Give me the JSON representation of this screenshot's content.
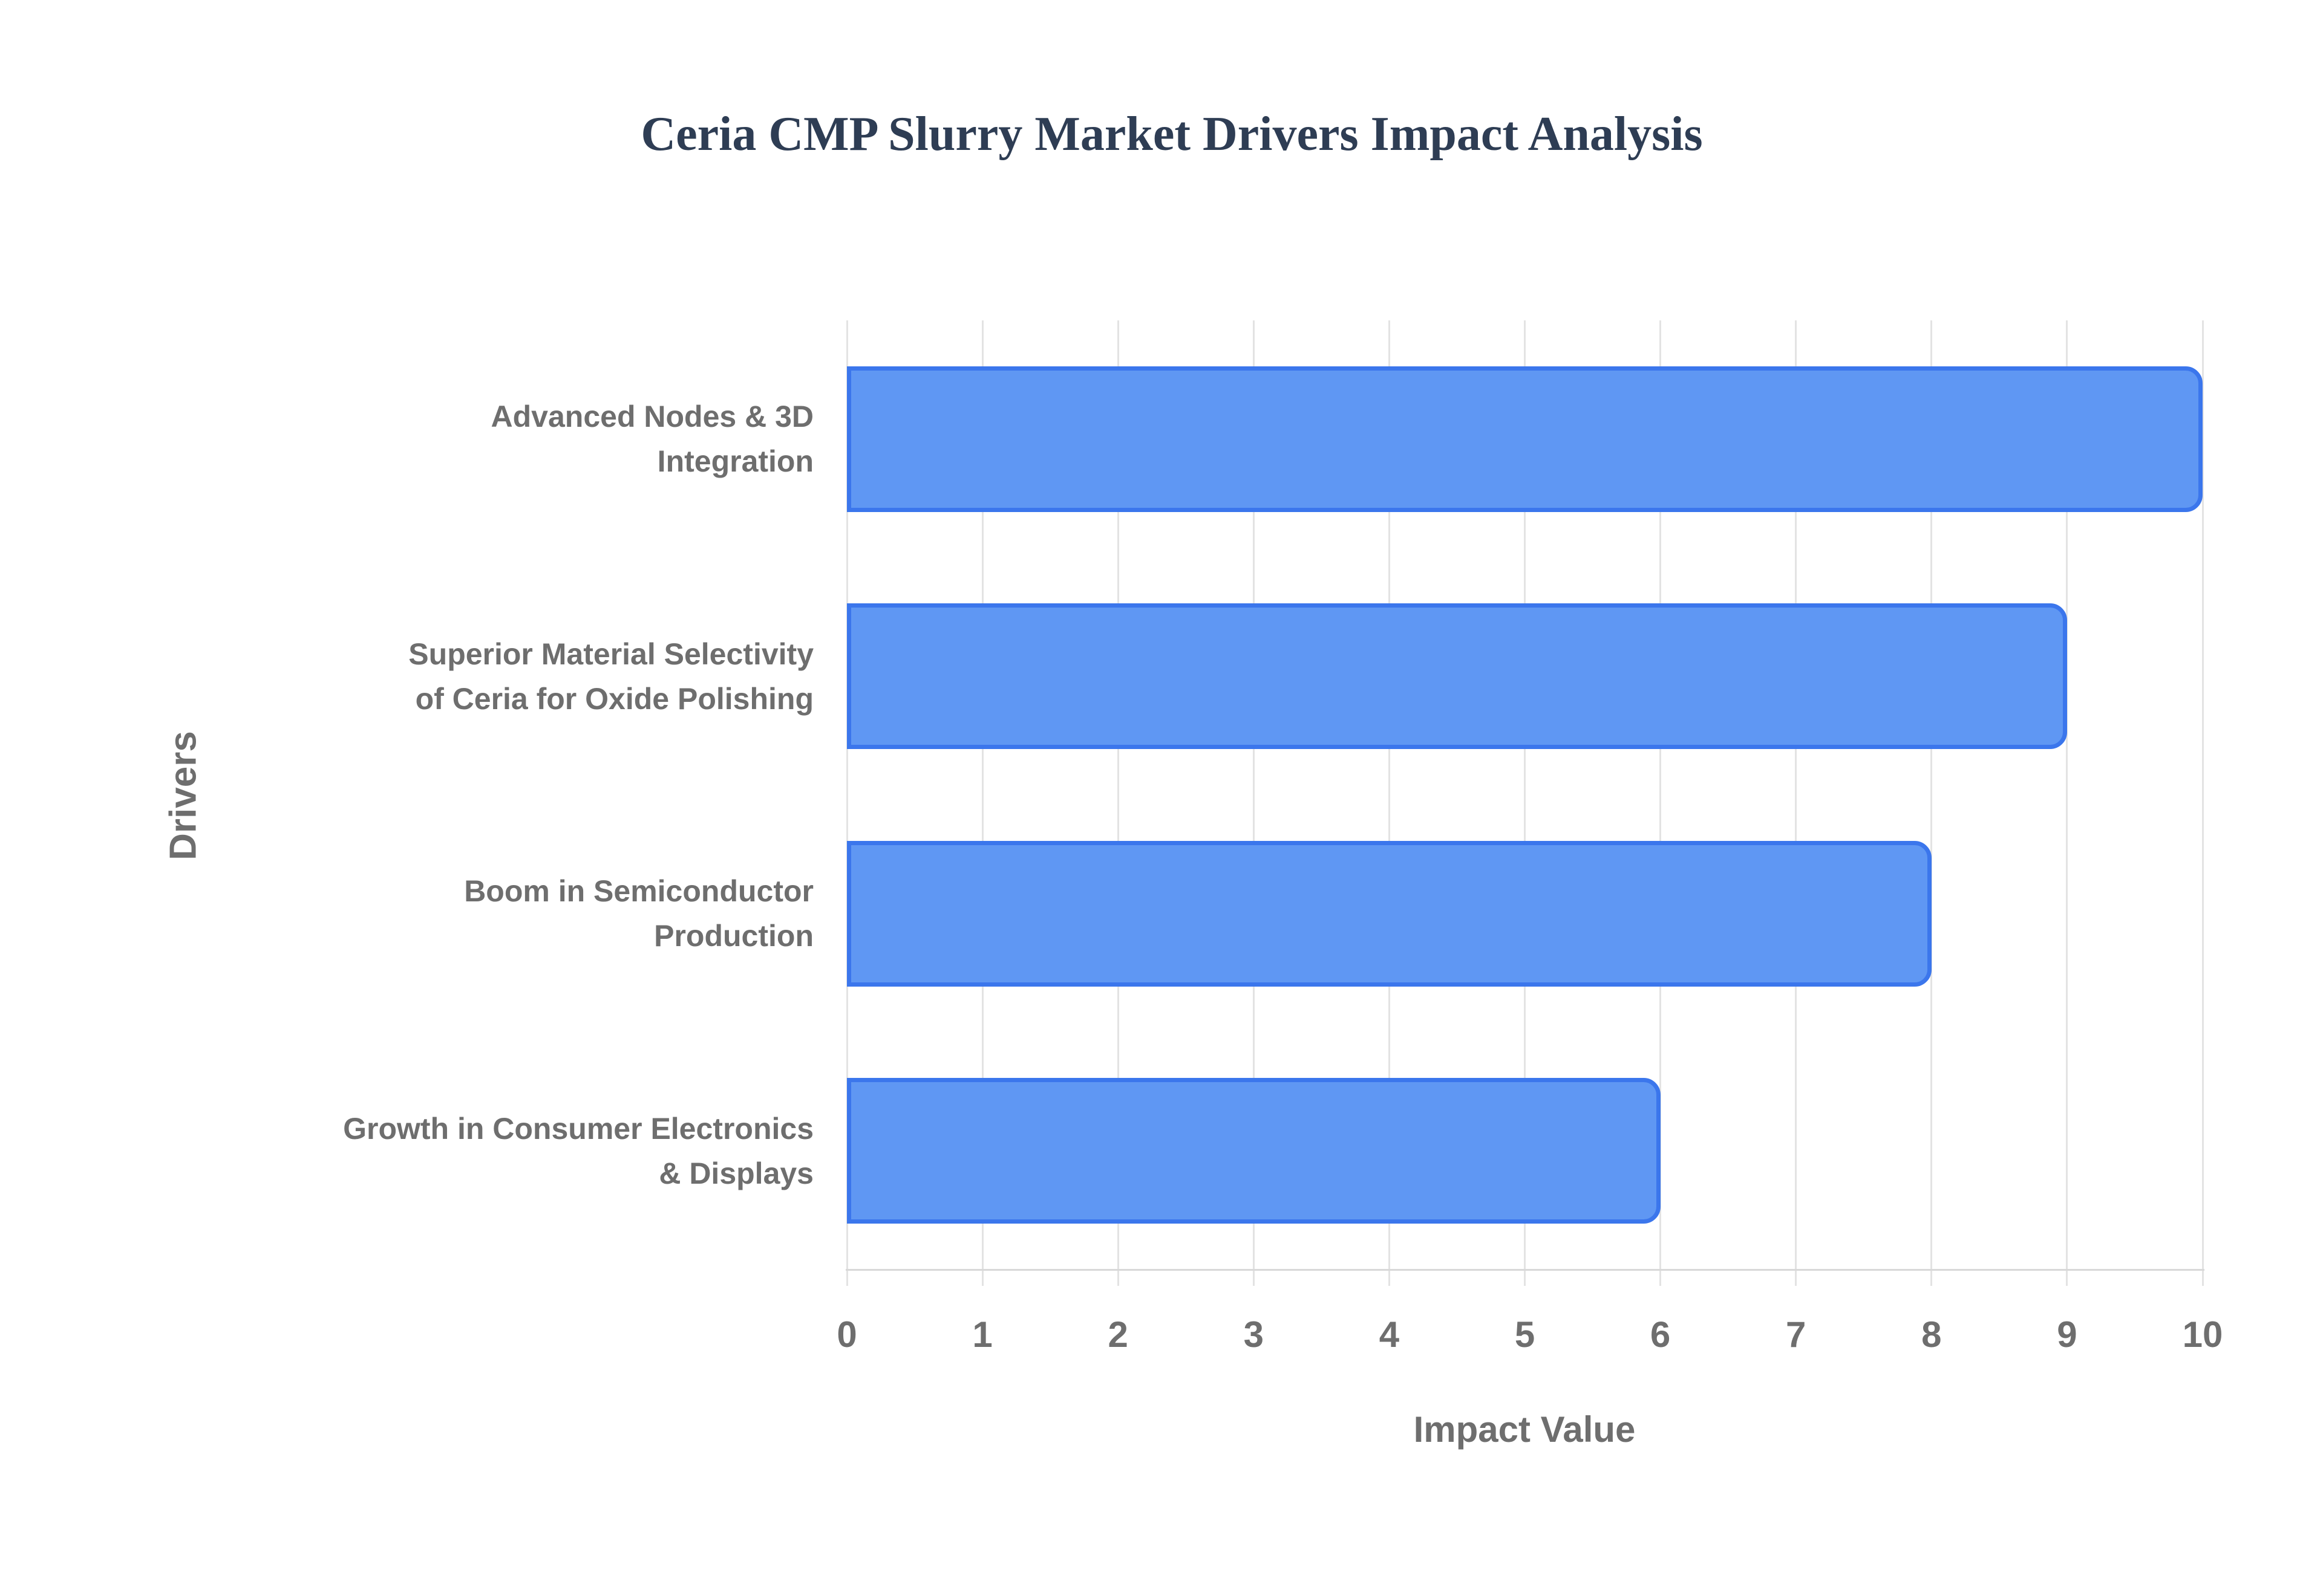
{
  "title": "Ceria CMP Slurry Market Drivers Impact Analysis",
  "chart_data": {
    "type": "bar",
    "orientation": "horizontal",
    "title": "Ceria CMP Slurry Market Drivers Impact Analysis",
    "categories": [
      "Advanced Nodes & 3D Integration",
      "Superior Material Selectivity of Ceria for Oxide Polishing",
      "Boom in Semiconductor Production",
      "Growth in Consumer Electronics & Displays"
    ],
    "values": [
      10,
      9,
      8,
      6
    ],
    "xlabel": "Impact Value",
    "ylabel": "Drivers",
    "xlim": [
      0,
      10
    ],
    "x_ticks": [
      0,
      1,
      2,
      3,
      4,
      5,
      6,
      7,
      8,
      9,
      10
    ],
    "grid": true,
    "legend": "none"
  },
  "colors": {
    "background": "#ffffff",
    "title_text": "#2e3d54",
    "axis_text": "#6e6e6e",
    "gridline": "#e3e3e3",
    "axis_line": "#d8d8d8",
    "bar_fill": "#5f97f3",
    "bar_border": "#3b76ec"
  }
}
